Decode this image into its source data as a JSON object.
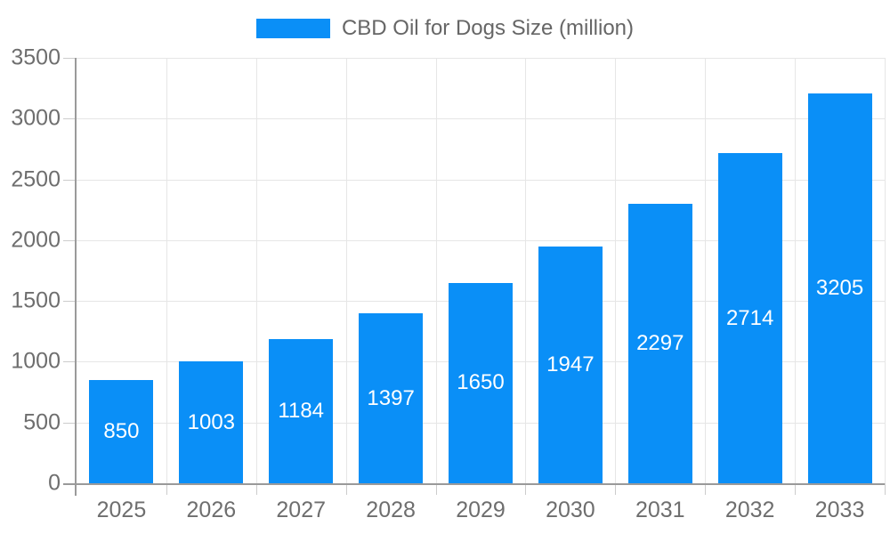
{
  "chart_data": {
    "type": "bar",
    "title": "CBD Oil for Dogs Size (million)",
    "categories": [
      "2025",
      "2026",
      "2027",
      "2028",
      "2029",
      "2030",
      "2031",
      "2032",
      "2033"
    ],
    "values": [
      850,
      1003,
      1184,
      1397,
      1650,
      1947,
      2297,
      2714,
      3205
    ],
    "xlabel": "",
    "ylabel": "",
    "ylim": [
      0,
      3500
    ],
    "yticks": [
      0,
      500,
      1000,
      1500,
      2000,
      2500,
      3000,
      3500
    ],
    "grid": true,
    "legend_position": "top",
    "value_label_position": "inside-center"
  },
  "colors": {
    "bar": "#0a8ff7",
    "grid": "#e6e6e6",
    "tick": "#cccccc",
    "axis": "#9a9a9a",
    "axis_text": "#6e6e6e",
    "legend_text": "#666666",
    "value_label": "#ffffff",
    "background": "#ffffff"
  }
}
